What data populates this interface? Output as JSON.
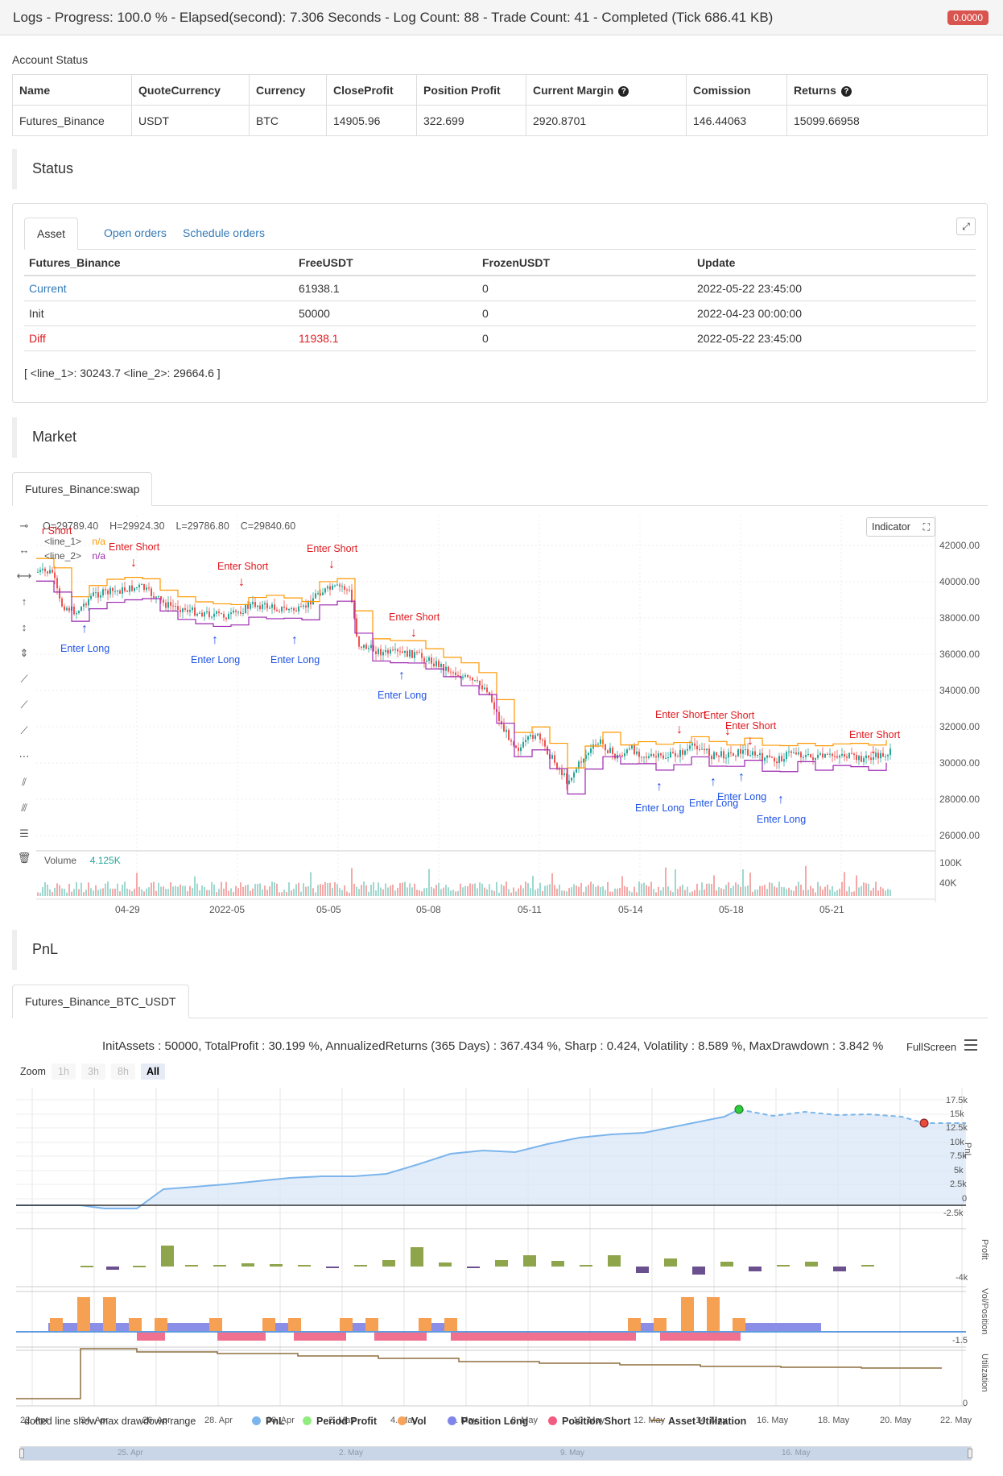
{
  "topbar": {
    "title": "Logs - Progress: 100.0 % - Elapsed(second): 7.306 Seconds - Log Count: 88 - Trade Count: 41 - Completed (Tick 686.41 KB)",
    "badge": "0.0000"
  },
  "account": {
    "label": "Account Status",
    "headers": [
      "Name",
      "QuoteCurrency",
      "Currency",
      "CloseProfit",
      "Position Profit",
      "Current Margin",
      "Comission",
      "Returns"
    ],
    "row": [
      "Futures_Binance",
      "USDT",
      "BTC",
      "14905.96",
      "322.699",
      "2920.8701",
      "146.44063",
      "15099.66958"
    ],
    "help_icon": "question-circle-icon"
  },
  "status": {
    "title": "Status",
    "tabs": [
      "Asset",
      "Open orders",
      "Schedule orders"
    ],
    "expand_icon": "expand-icon",
    "headers": [
      "Futures_Binance",
      "FreeUSDT",
      "FrozenUSDT",
      "Update"
    ],
    "rows": [
      [
        "Current",
        "61938.1",
        "0",
        "2022-05-22 23:45:00"
      ],
      [
        "Init",
        "50000",
        "0",
        "2022-04-23 00:00:00"
      ],
      [
        "Diff",
        "11938.1",
        "0",
        "2022-05-22 23:45:00"
      ]
    ],
    "colors": {
      "current": "#337ab7",
      "diff": "#e0191f"
    },
    "line_info": "[ <line_1>: 30243.7 <line_2>: 29664.6 ]"
  },
  "market": {
    "title": "Market",
    "tab": "Futures_Binance:swap",
    "ohlc": {
      "o": "O=29789.40",
      "h": "H=29924.30",
      "l": "L=29786.80",
      "c": "C=29840.60"
    },
    "legend": [
      {
        "name": "<line_1>",
        "value": "n/a",
        "color": "#ff9800"
      },
      {
        "name": "<line_2>",
        "value": "n/a",
        "color": "#9c27b0"
      }
    ],
    "indicator_btn": "Indicator",
    "volume_label": "Volume",
    "volume_value": "4.125K",
    "y_ticks": [
      "42000.00",
      "40000.00",
      "38000.00",
      "36000.00",
      "34000.00",
      "32000.00",
      "30000.00",
      "28000.00",
      "26000.00"
    ],
    "vol_ticks": [
      "100K",
      "40K"
    ],
    "x_ticks": [
      "04-29",
      "2022-05",
      "05-05",
      "05-08",
      "05-11",
      "05-14",
      "05-18",
      "05-21"
    ],
    "annotations": {
      "enter_short": "Enter Short",
      "enter_long": "Enter Long",
      "short_color": "#e0191f",
      "long_color": "#1e53e5",
      "clipped_short": "r Short"
    }
  },
  "pnl": {
    "title": "PnL",
    "tab": "Futures_Binance_BTC_USDT",
    "summary": "InitAssets : 50000, TotalProfit : 30.199 %, AnnualizedReturns (365 Days) : 367.434 %, Sharp : 0.424, Volatility : 8.589 %, MaxDrawdown : 3.842 %",
    "fullscreen": "FullScreen",
    "zoom_label": "Zoom",
    "zoom_buttons": [
      "1h",
      "3h",
      "8h",
      "All"
    ],
    "pnl_ticks": [
      "17.5k",
      "15k",
      "12.5k",
      "10k",
      "7.5k",
      "5k",
      "2.5k",
      "0",
      "-2.5k"
    ],
    "profit_ticks": [
      "-4k"
    ],
    "vol_ticks": [
      "-1.5"
    ],
    "util_ticks": [
      "0"
    ],
    "panel_labels": [
      "PnL",
      "Profit",
      "Vol/Position",
      "Utilization"
    ],
    "x_ticks": [
      "22. Apr",
      "24. Apr",
      "26. Apr",
      "28. Apr",
      "30. Apr",
      "2. May",
      "4. May",
      "6. May",
      "8. May",
      "10. May",
      "12. May",
      "14. May",
      "16. May",
      "18. May",
      "20. May",
      "22. May"
    ],
    "dotted_note": "dotted line show max drawdown range",
    "legend": [
      {
        "name": "PnL",
        "color": "#7cb5ec"
      },
      {
        "name": "Period Profit",
        "color": "#90ed7d"
      },
      {
        "name": "Vol",
        "color": "#f7a35c"
      },
      {
        "name": "Position Long",
        "color": "#8085e9"
      },
      {
        "name": "Position Short",
        "color": "#f15c80"
      },
      {
        "name": "Asset Utilization",
        "color": "#8d6e3f"
      }
    ],
    "nav_ticks": [
      "25. Apr",
      "2. May",
      "9. May",
      "16. May"
    ]
  }
}
